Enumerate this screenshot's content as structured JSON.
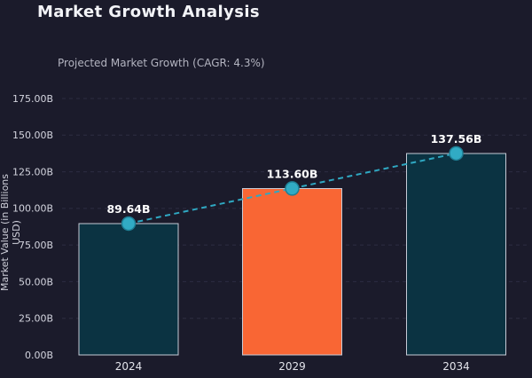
{
  "title": "Market Growth Analysis",
  "subtitle": "Projected Market Growth (CAGR: 4.3%)",
  "colors": {
    "background": "#1b1b2b",
    "title_text": "#f2f3f7",
    "subtitle_text": "#b3b4c0",
    "axis_tick_text": "#d3d4de",
    "category_text": "#e2e3ea",
    "value_label_text": "#ffffff",
    "grid_line": "#44445e",
    "trend_line": "#2fa8c2",
    "marker_fill": "#31abc4",
    "bar_border": "#c6cbd6",
    "bar_teal": "#0b3342",
    "bar_orange": "#f96634"
  },
  "chart_data": {
    "type": "bar",
    "title": "Market Growth Analysis",
    "subtitle": "Projected Market Growth (CAGR: 4.3%)",
    "categories": [
      "2024",
      "2029",
      "2034"
    ],
    "values": [
      89.64,
      113.6,
      137.56
    ],
    "data_labels": [
      "89.64B",
      "113.60B",
      "137.56B"
    ],
    "bar_colors": [
      "#0b3342",
      "#f96634",
      "#0b3342"
    ],
    "overlay_line": {
      "type": "line",
      "style": "dashed",
      "color": "#2fa8c2",
      "x": [
        "2024",
        "2029",
        "2034"
      ],
      "y": [
        89.64,
        113.6,
        137.56
      ]
    },
    "xlabel": "",
    "ylabel": "Market Value (in Billions USD)",
    "ylim": [
      0,
      175
    ],
    "yticks": [
      0,
      25,
      50,
      75,
      100,
      125,
      150,
      175
    ],
    "ytick_labels": [
      "0.00B",
      "25.00B",
      "50.00B",
      "75.00B",
      "100.00B",
      "125.00B",
      "150.00B",
      "175.00B"
    ],
    "grid": "horizontal-dashed",
    "legend_position": "none"
  }
}
